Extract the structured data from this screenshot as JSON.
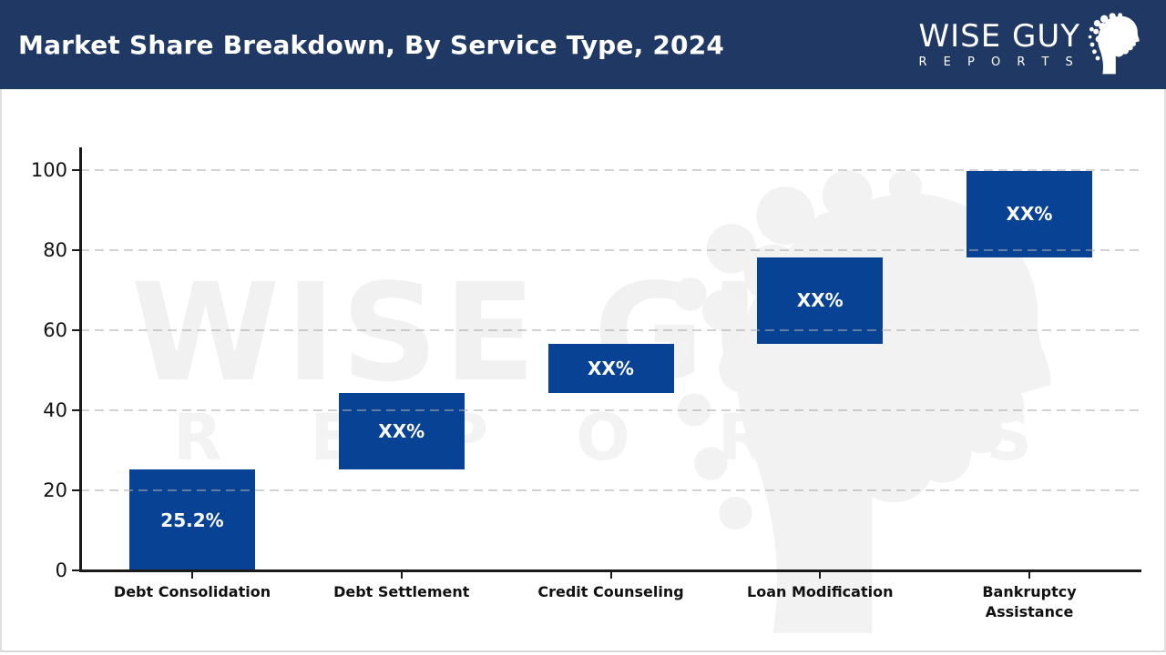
{
  "header": {
    "title": "Market Share Breakdown, By Service Type, 2024",
    "bg_color": "#1F3864",
    "brand": {
      "line1": "WISE GUY",
      "line2": "R E P O R T S"
    }
  },
  "watermark": {
    "line1": "WISE GUY",
    "line2": "R E P O R T S"
  },
  "chart_data": {
    "type": "bar",
    "subtype": "waterfall",
    "title": "Market Share Breakdown, By Service Type, 2024",
    "xlabel": "",
    "ylabel": "",
    "categories": [
      "Debt Consolidation",
      "Debt Settlement",
      "Credit Counseling",
      "Loan Modification",
      "Bankruptcy Assistance"
    ],
    "segments": [
      {
        "category": "Debt Consolidation",
        "start": 0,
        "end": 25.2,
        "label": "25.2%"
      },
      {
        "category": "Debt Settlement",
        "start": 25.2,
        "end": 44.3,
        "label": "XX%"
      },
      {
        "category": "Credit Counseling",
        "start": 44.3,
        "end": 56.6,
        "label": "XX%"
      },
      {
        "category": "Loan Modification",
        "start": 56.6,
        "end": 78.2,
        "label": "XX%"
      },
      {
        "category": "Bankruptcy Assistance",
        "start": 78.2,
        "end": 99.8,
        "label": "XX%"
      }
    ],
    "y_ticks": [
      0,
      20,
      40,
      60,
      80,
      100
    ],
    "ylim": [
      0,
      105
    ],
    "grid": "horizontal dashed",
    "legend": "none",
    "bar_color": "#084294",
    "bar_label_color": "#ffffff",
    "grid_color": "#acacac",
    "axis_color": "#1a1a1a"
  }
}
